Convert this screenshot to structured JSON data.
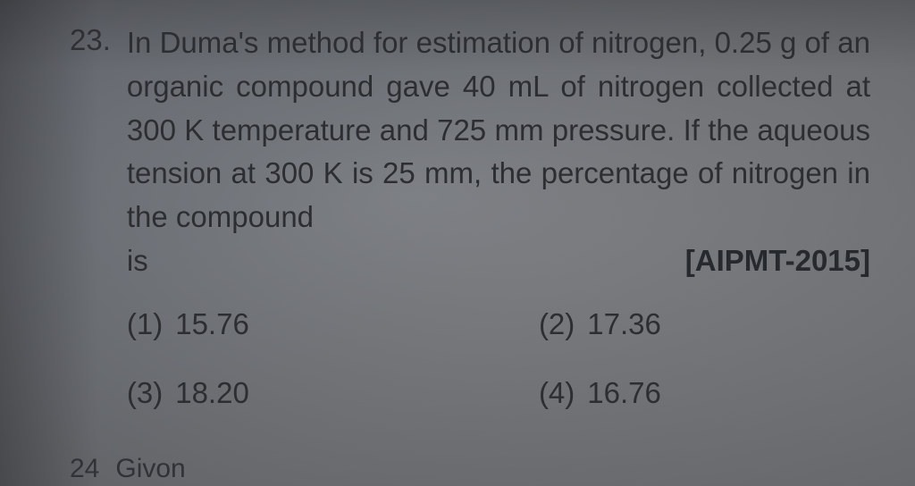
{
  "colors": {
    "text": "#2c2e32",
    "text_strong": "#262a2f",
    "bg_avg": "#6f7278"
  },
  "typography": {
    "body_fontsize_pt": 25,
    "line_height": 1.48,
    "source_weight": 700
  },
  "question": {
    "number": "23.",
    "text_main": "In Duma's method for estimation of nitrogen, 0.25 g of an organic compound gave 40 mL of nitrogen collected at 300 K temperature and 725 mm pressure. If the aqueous tension at 300 K is 25 mm, the percentage of nitrogen in the compound",
    "text_tail": "is",
    "source": "[AIPMT-2015]"
  },
  "options": [
    {
      "label": "(1)",
      "value": "15.76"
    },
    {
      "label": "(2)",
      "value": "17.36"
    },
    {
      "label": "(3)",
      "value": "18.20"
    },
    {
      "label": "(4)",
      "value": "16.76"
    }
  ],
  "next": {
    "number": "24",
    "partial": "Givon"
  }
}
